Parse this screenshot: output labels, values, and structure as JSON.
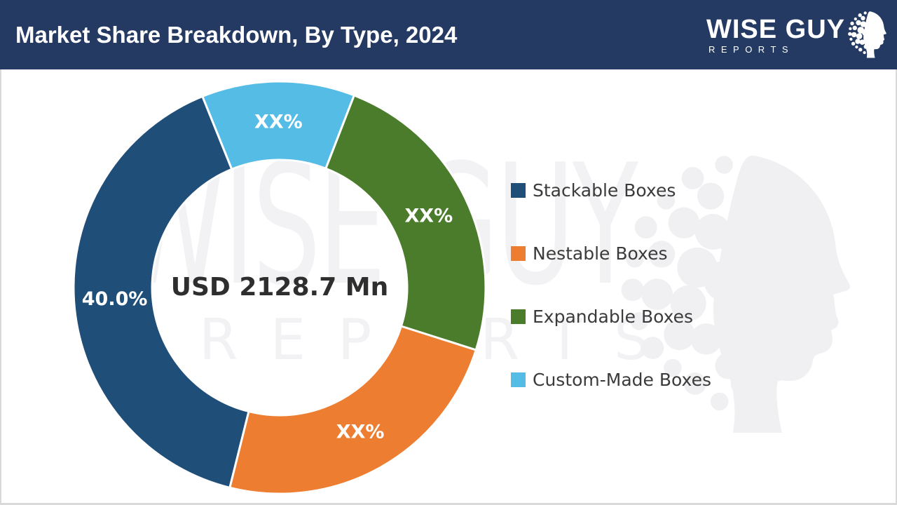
{
  "header": {
    "title": "Market Share Breakdown, By Type, 2024",
    "logo": {
      "name": "WISE GUY",
      "tagline": "REPORTS"
    }
  },
  "watermark": {
    "line1": "WISE GUY",
    "line2": "REPORTS"
  },
  "chart_data": {
    "type": "donut",
    "title": "Market Share Breakdown, By Type, 2024",
    "center_label": "USD 2128.7 Mn",
    "start_angle_deg": 112,
    "direction": "counterclockwise",
    "legend_position": "right",
    "slices": [
      {
        "label": "Stackable Boxes",
        "value_pct": 40.0,
        "display_label": "40.0%",
        "color": "#1f4e79"
      },
      {
        "label": "Nestable Boxes",
        "value_pct": 24.0,
        "display_label": "XX%",
        "color": "#ed7d31"
      },
      {
        "label": "Expandable Boxes",
        "value_pct": 24.0,
        "display_label": "XX%",
        "color": "#4a7c2b"
      },
      {
        "label": "Custom-Made Boxes",
        "value_pct": 12.0,
        "display_label": "XX%",
        "color": "#55bce6"
      }
    ]
  },
  "colors": {
    "header_bg": "#243a63",
    "canvas_bg": "#ffffff",
    "border": "#d9d9d9",
    "watermark": "#f2f2f4",
    "center_label_color": "#2e2e2e",
    "legend_text": "#3b3b3b",
    "slice_label_color": "#ffffff"
  }
}
